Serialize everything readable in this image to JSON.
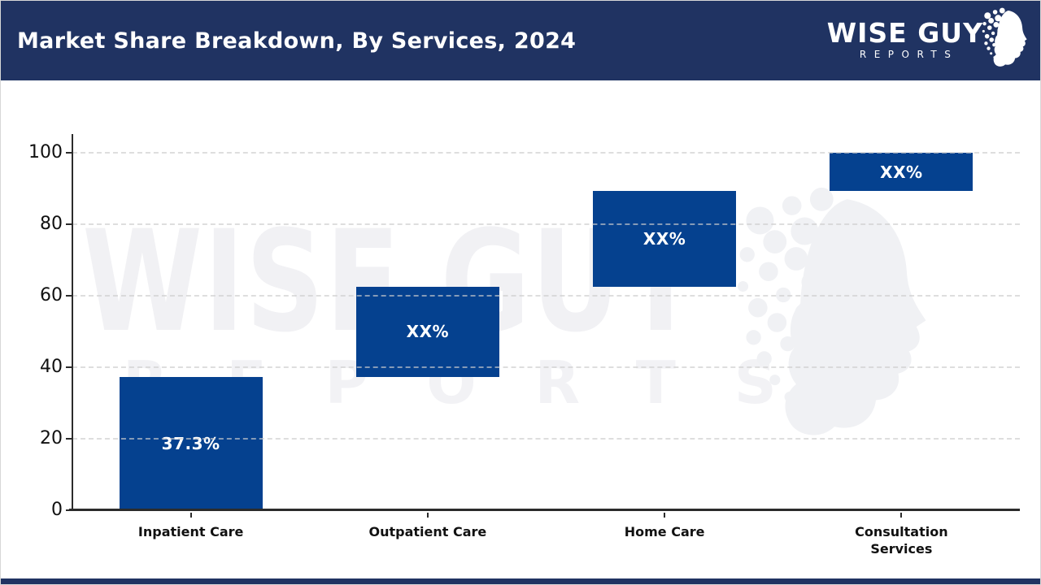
{
  "header": {
    "title": "Market Share Breakdown, By Services, 2024",
    "logo": {
      "line1": "WISE GUY",
      "line2": "REPORTS"
    }
  },
  "watermark": {
    "line1": "WISE GUY",
    "line2": "REPORTS"
  },
  "colors": {
    "header_bg": "#203362",
    "bar_blue": "#05418f",
    "bar_label": "#ffffff",
    "axis": "#2b2b2b",
    "gridline": "#d9d9d9",
    "watermark": "#f1f1f4",
    "title_text": "#ffffff",
    "tick_text": "#111111"
  },
  "chart_data": {
    "type": "bar",
    "subtype": "waterfall-floating-bars",
    "title": "Market Share Breakdown, By Services, 2024",
    "xlabel": "",
    "ylabel": "",
    "ylim": [
      0,
      100
    ],
    "yticks": [
      0,
      20,
      40,
      60,
      80,
      100
    ],
    "grid": "dashed-horizontal",
    "legend": "none",
    "categories": [
      "Inpatient Care",
      "Outpatient Care",
      "Home Care",
      "Consultation Services"
    ],
    "segments": [
      {
        "category": "Inpatient Care",
        "start": 0,
        "end": 37.3,
        "label": "37.3%"
      },
      {
        "category": "Outpatient Care",
        "start": 37.3,
        "end": 62.6,
        "label": "XX%"
      },
      {
        "category": "Home Care",
        "start": 62.6,
        "end": 89.3,
        "label": "XX%"
      },
      {
        "category": "Consultation Services",
        "start": 89.3,
        "end": 100,
        "label": "XX%"
      }
    ]
  }
}
